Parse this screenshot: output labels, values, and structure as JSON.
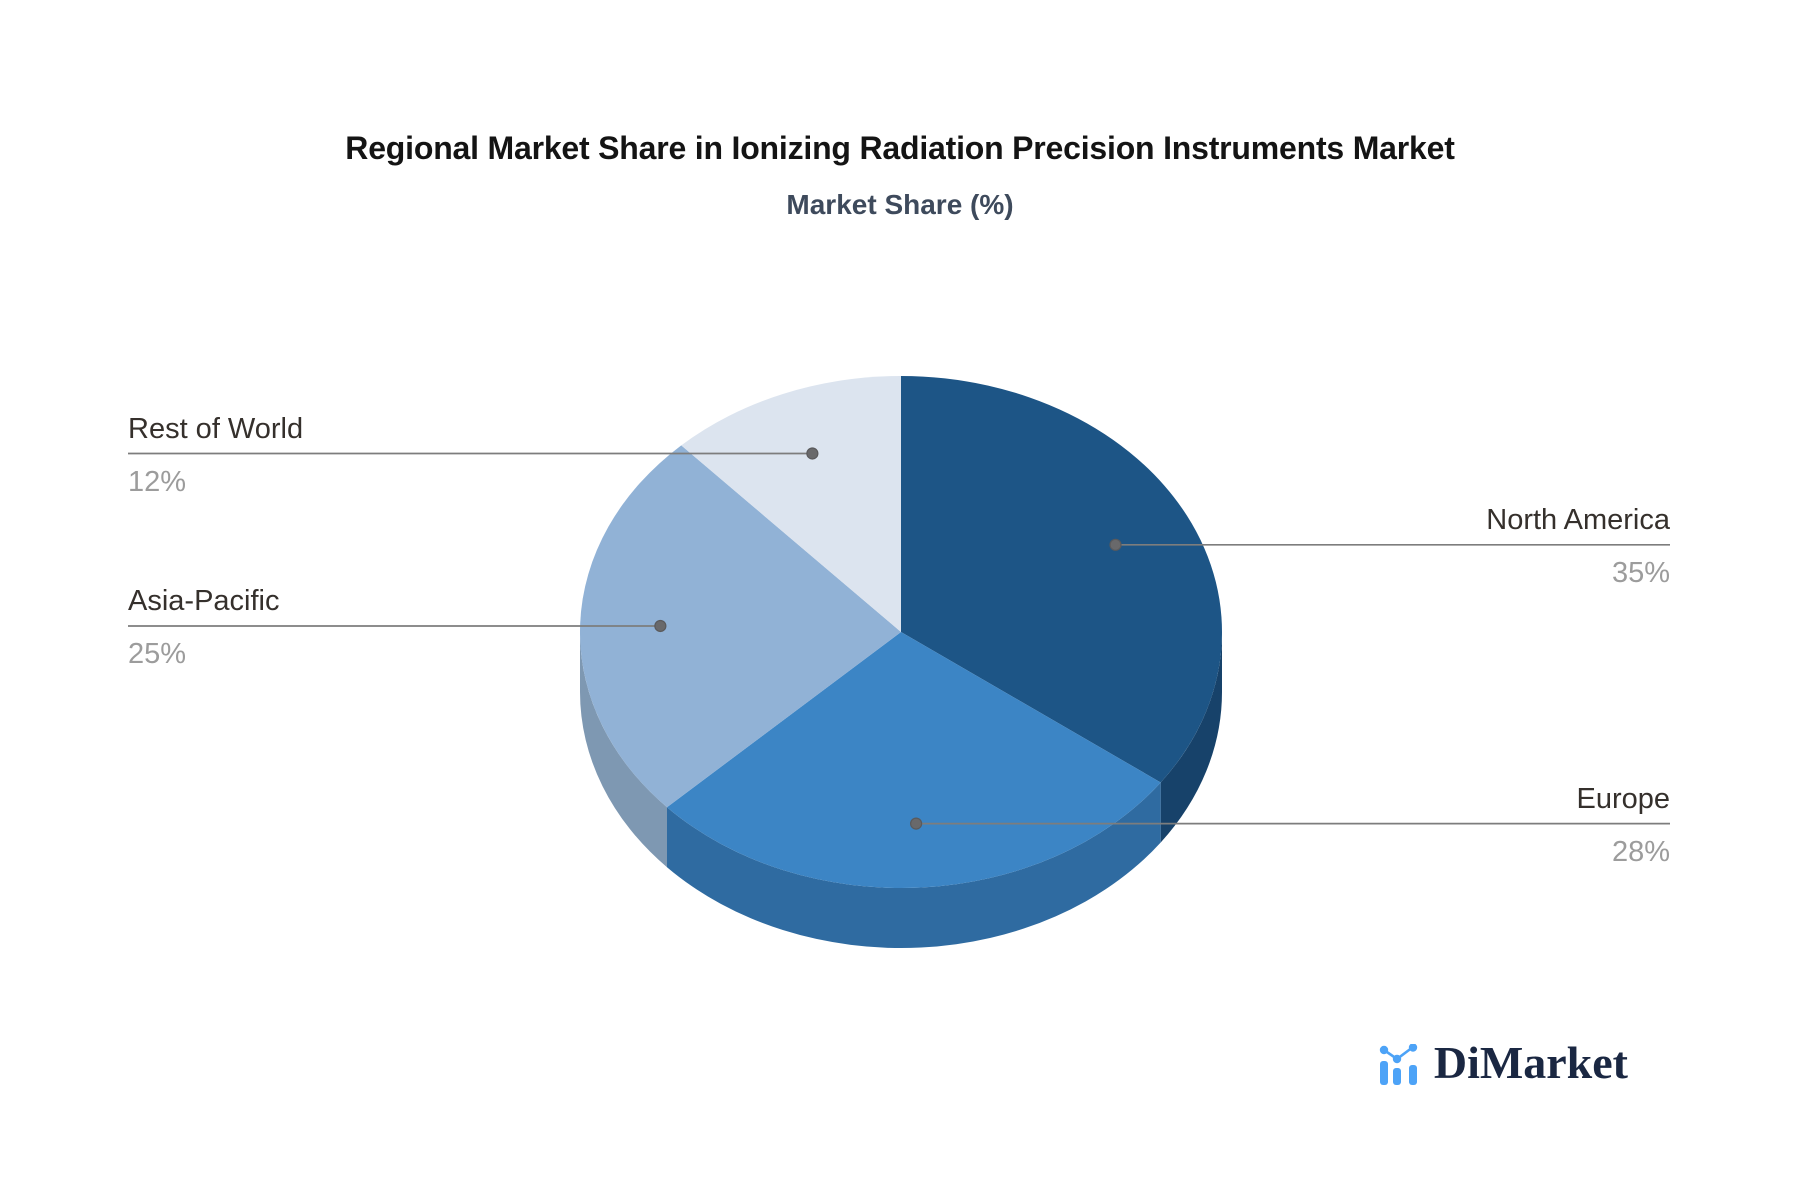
{
  "chart_data": {
    "type": "pie",
    "style": "3d",
    "title": "Regional Market Share in Ionizing Radiation Precision Instruments Market",
    "subtitle": "Market Share (%)",
    "unit": "%",
    "direction": "clockwise",
    "start_angle": "12 o'clock",
    "slices": [
      {
        "label": "North America",
        "value": 35,
        "pct_label": "35%",
        "color": "#1d5586",
        "side_color": "#17426a",
        "callout_side": "right"
      },
      {
        "label": "Europe",
        "value": 28,
        "pct_label": "28%",
        "color": "#3c85c5",
        "side_color": "#2f6ba1",
        "callout_side": "right"
      },
      {
        "label": "Asia-Pacific",
        "value": 25,
        "pct_label": "25%",
        "color": "#91b2d6",
        "side_color": "#7e98b2",
        "callout_side": "left"
      },
      {
        "label": "Rest of World",
        "value": 12,
        "pct_label": "12%",
        "color": "#dce4ef",
        "side_color": "#b9c4d4",
        "callout_side": "left"
      }
    ],
    "leader_line_color": "#7d7d7d",
    "leader_dot_color": "#69696b",
    "label_color": "#35302c",
    "pct_color": "#9c9c9c",
    "legend": "none",
    "grid": "off"
  },
  "brand": {
    "name": "DiMarket",
    "icon": "bar-line-chart-icon",
    "icon_color": "#4da3f7",
    "text_color": "#1a2742"
  }
}
